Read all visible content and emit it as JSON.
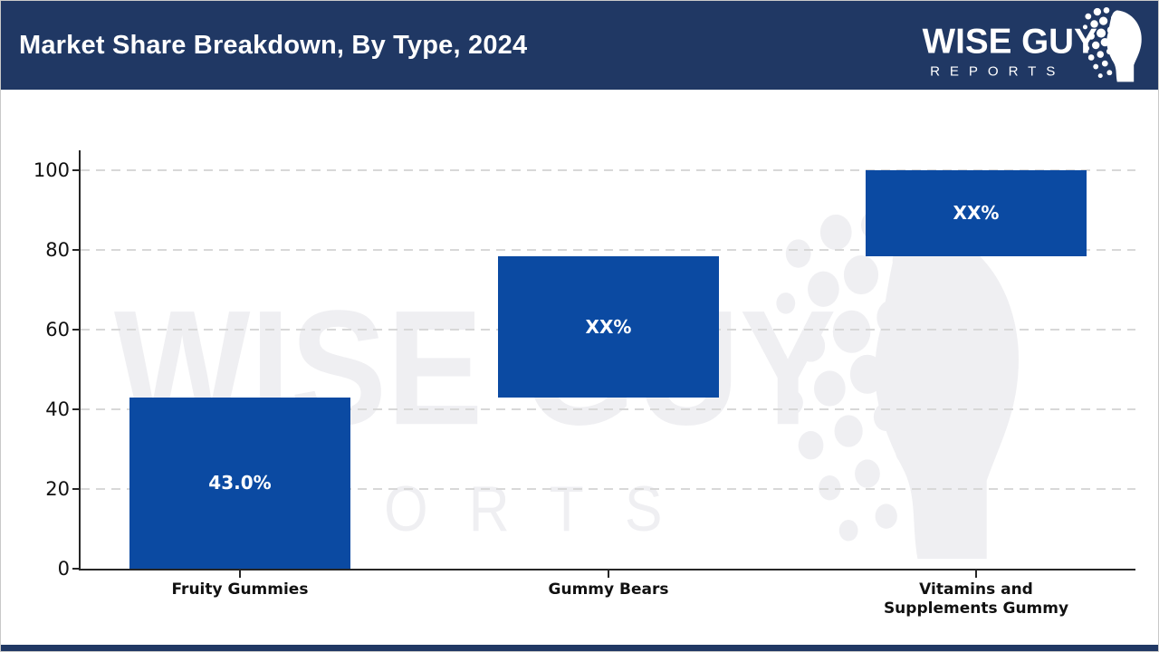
{
  "header": {
    "title": "Market Share Breakdown, By Type, 2024",
    "logo": {
      "primary": "WISE GUY",
      "secondary": "REPORTS"
    }
  },
  "branding": {
    "header_bg": "#203864",
    "footer_bg": "#203864",
    "watermark_color": "#efeff2"
  },
  "chart_data": {
    "type": "bar",
    "subtype": "floating-waterfall",
    "title": "",
    "xlabel": "",
    "ylabel": "",
    "categories": [
      "Fruity Gummies",
      "Gummy Bears",
      "Vitamins and Supplements Gummy"
    ],
    "category_lines": [
      [
        "Fruity Gummies"
      ],
      [
        "Gummy Bears"
      ],
      [
        "Vitamins and",
        "Supplements Gummy"
      ]
    ],
    "segments": [
      {
        "category": "Fruity Gummies",
        "start": 0,
        "end": 43,
        "value": 43.0,
        "label": "43.0%"
      },
      {
        "category": "Gummy Bears",
        "start": 43,
        "end": 78.5,
        "value": 35.5,
        "label": "XX%"
      },
      {
        "category": "Vitamins and Supplements Gummy",
        "start": 78.5,
        "end": 100,
        "value": 21.5,
        "label": "XX%"
      }
    ],
    "yticks": [
      0,
      20,
      40,
      60,
      80,
      100
    ],
    "ylim": [
      0,
      105
    ],
    "grid": "dashed-horizontal",
    "legend": "none",
    "colors": {
      "bar": "#0b4aa2",
      "bar_label": "#ffffff",
      "axis": "#262626",
      "tick_label": "#111111",
      "gridline": "#d8d8d8"
    }
  }
}
